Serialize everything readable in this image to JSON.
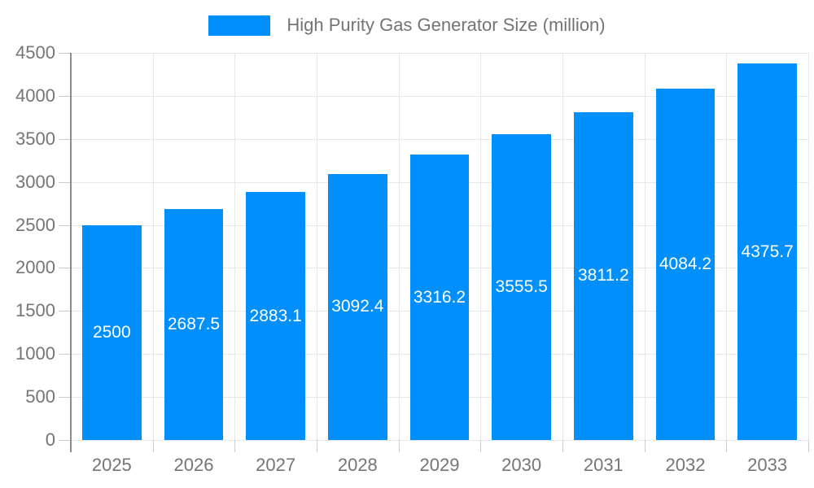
{
  "page": {
    "background": "#ffffff"
  },
  "chart_data": {
    "type": "bar",
    "title": "High Purity Gas Generator Size (million)",
    "series_name": "High Purity Gas Generator Size (million)",
    "categories": [
      "2025",
      "2026",
      "2027",
      "2028",
      "2029",
      "2030",
      "2031",
      "2032",
      "2033"
    ],
    "values": [
      2500,
      2687.5,
      2883.1,
      3092.4,
      3316.2,
      3555.5,
      3811.2,
      4084.2,
      4375.7
    ],
    "value_labels": [
      "2500",
      "2687.5",
      "2883.1",
      "3092.4",
      "3316.2",
      "3555.5",
      "3811.2",
      "4084.2",
      "4375.7"
    ],
    "xlabel": "",
    "ylabel": "",
    "ylim": [
      0,
      4500
    ],
    "yticks": [
      0,
      500,
      1000,
      1500,
      2000,
      2500,
      3000,
      3500,
      4000,
      4500
    ],
    "grid": true,
    "legend_position": "top-center",
    "data_label_position": "center-of-bar",
    "colors": {
      "bar": "#008FFB",
      "data_label": "#ffffff",
      "axis_label": "#757575",
      "legend_label": "#737373",
      "gridline": "#e7e7e7",
      "tick": "#cccccc",
      "axis_line": "#8c8c8c"
    }
  }
}
